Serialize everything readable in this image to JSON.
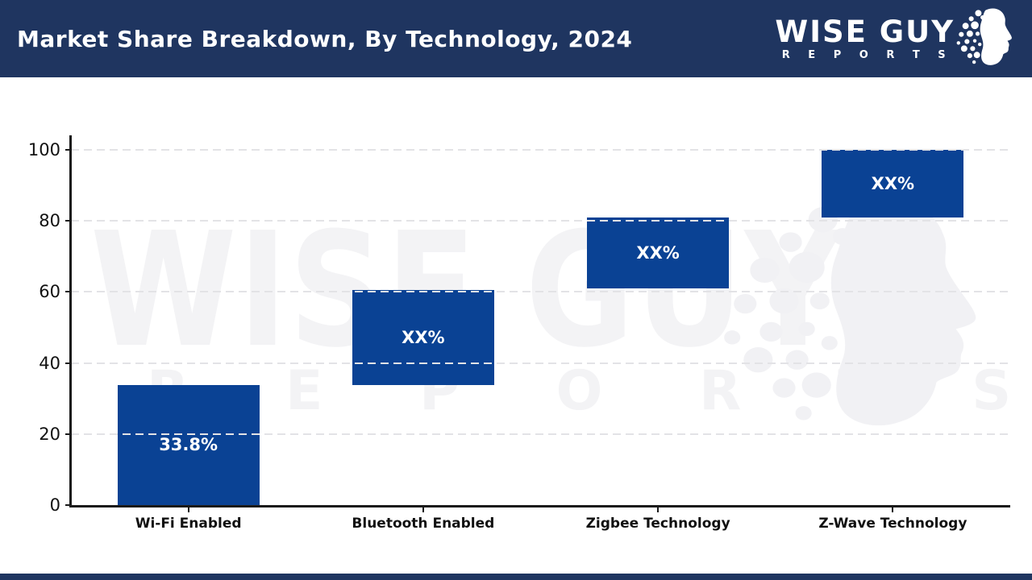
{
  "header": {
    "title": "Market Share Breakdown, By Technology, 2024",
    "bg_color": "#1f3560"
  },
  "logo": {
    "wordmark": "WISE GUY",
    "subtitle": "R E P O R T S"
  },
  "watermark": {
    "wordmark": "WISE GUY",
    "subtitle": "R E P O R T S"
  },
  "footer": {
    "bar_color": "#1f3560"
  },
  "chart_data": {
    "type": "bar",
    "subtype": "waterfall",
    "title": "Market Share Breakdown, By Technology, 2024",
    "categories": [
      "Wi-Fi Enabled",
      "Bluetooth Enabled",
      "Zigbee Technology",
      "Z-Wave Technology"
    ],
    "segments": [
      {
        "category": "Wi-Fi Enabled",
        "start": 0,
        "end": 33.8,
        "label": "33.8%"
      },
      {
        "category": "Bluetooth Enabled",
        "start": 33.8,
        "end": 60.5,
        "label": "XX%"
      },
      {
        "category": "Zigbee Technology",
        "start": 61,
        "end": 81,
        "label": "XX%"
      },
      {
        "category": "Z-Wave Technology",
        "start": 81,
        "end": 100,
        "label": "XX%"
      }
    ],
    "xlabel": "",
    "ylabel": "",
    "yticks": [
      0,
      20,
      40,
      60,
      80,
      100
    ],
    "ylim": [
      0,
      105
    ],
    "grid": "dashed-horizontal",
    "legend": "none",
    "bar_color": "#0a4294",
    "bar_label_color": "#ffffff",
    "gridline_color": "#e3e3e6",
    "axis_color": "#1a1a1a"
  }
}
